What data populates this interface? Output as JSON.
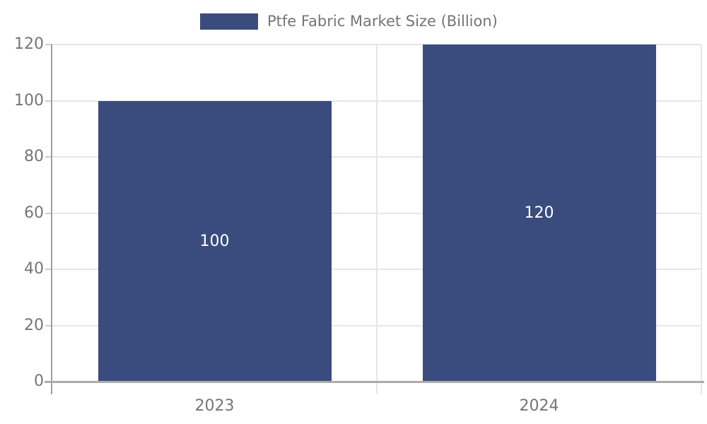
{
  "chart_data": {
    "type": "bar",
    "title": "Ptfe Fabric Market Size (Billion)",
    "legend": [
      "Ptfe Fabric Market Size (Billion)"
    ],
    "legend_position": "top",
    "categories": [
      "2023",
      "2024"
    ],
    "values": [
      100,
      120
    ],
    "bar_labels": [
      "100",
      "120"
    ],
    "xlabel": "",
    "ylabel": "",
    "ylim": [
      0,
      120
    ],
    "yticks": [
      0,
      20,
      40,
      60,
      80,
      100,
      120
    ],
    "grid": true,
    "colors": {
      "bar": "#3A4C7E",
      "bar_value_text": "#ffffff",
      "axis_text": "#757575",
      "legend_text": "#757575",
      "gridline": "#e6e6e6",
      "axis_line_y": "#9e9e9e",
      "axis_line_x": "#ababab",
      "tick": "#cccccc",
      "background": "#ffffff"
    }
  }
}
